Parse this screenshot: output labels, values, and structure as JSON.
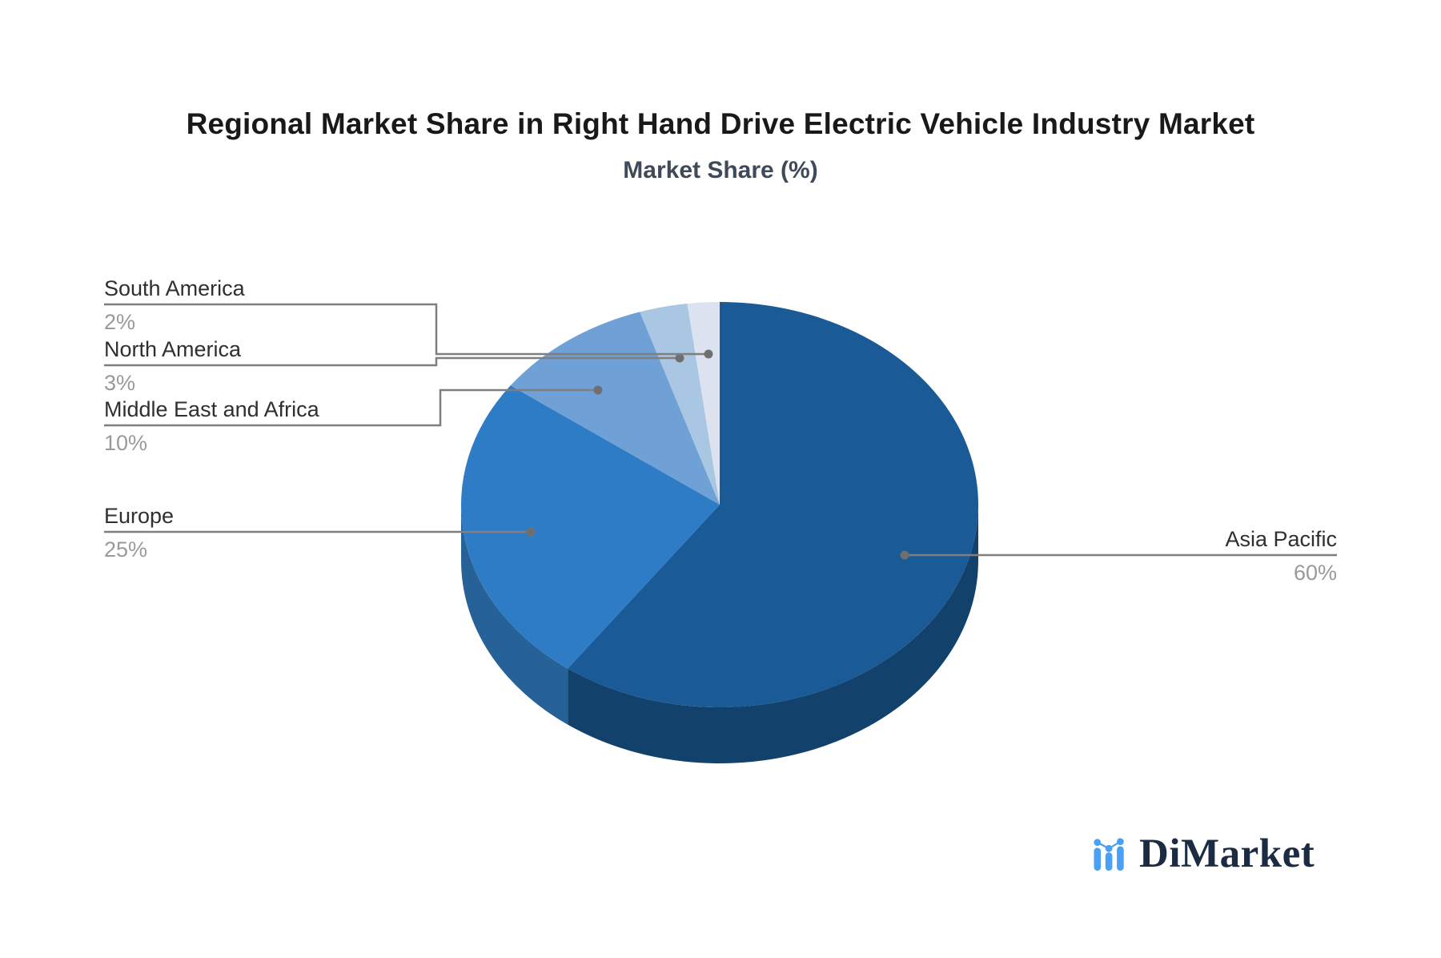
{
  "chart_data": {
    "type": "pie",
    "style": "3d",
    "direction": "clockwise",
    "start_angle_deg": 0,
    "title": "Regional Market Share in Right Hand Drive Electric Vehicle Industry Market",
    "subtitle": "Market Share (%)",
    "unit": "%",
    "legend_position": "none-callout-labels",
    "connector_color": "#7f7f7f",
    "label_color": "#2f2f2f",
    "value_color": "#9a9a9a",
    "slices": [
      {
        "label": "Asia Pacific",
        "value": 60,
        "value_text": "60%",
        "color": "#1A5A96",
        "side_color": "#12416C"
      },
      {
        "label": "Europe",
        "value": 25,
        "value_text": "25%",
        "color": "#2F7CC6",
        "side_color": "#266198"
      },
      {
        "label": "Middle East and Africa",
        "value": 10,
        "value_text": "10%",
        "color": "#6FA0D6"
      },
      {
        "label": "North America",
        "value": 3,
        "value_text": "3%",
        "color": "#A9C6E3"
      },
      {
        "label": "South America",
        "value": 2,
        "value_text": "2%",
        "color": "#DCE3EF"
      }
    ]
  },
  "logo": {
    "text": "DiMarket",
    "icon": "bar-chart-sparkline-icon",
    "icon_color": "#4AA0F4",
    "text_color": "#1a2b42"
  }
}
